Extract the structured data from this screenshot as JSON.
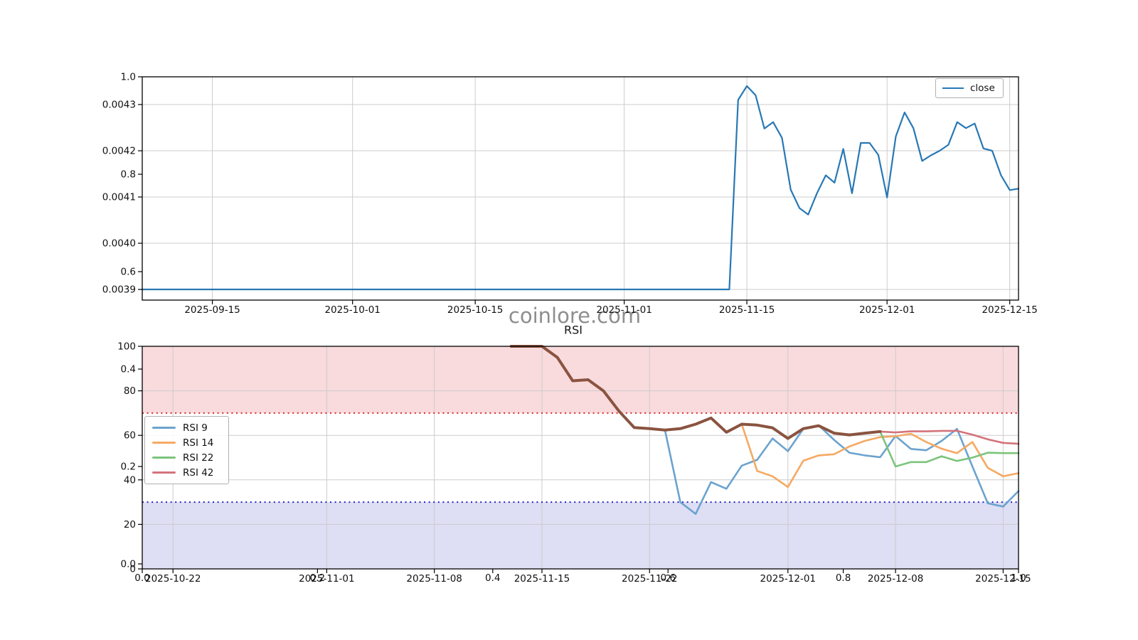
{
  "watermark": {
    "text": "coinlore.com"
  },
  "overlay_axis": {
    "x_ticks": [
      {
        "label": "0.0",
        "value": 0.0
      },
      {
        "label": "0.2",
        "value": 0.2
      },
      {
        "label": "0.4",
        "value": 0.4
      },
      {
        "label": "0.6",
        "value": 0.6
      },
      {
        "label": "0.8",
        "value": 0.8
      },
      {
        "label": "1.0",
        "value": 1.0
      }
    ],
    "y_ticks": [
      {
        "label": "0.0",
        "value": 0.0
      },
      {
        "label": "0.2",
        "value": 0.2
      },
      {
        "label": "0.4",
        "value": 0.4
      },
      {
        "label": "0.6",
        "value": 0.6
      },
      {
        "label": "0.8",
        "value": 0.8
      },
      {
        "label": "1.0",
        "value": 1.0
      }
    ]
  },
  "colors": {
    "grid": "#cccccc",
    "spine": "#000000",
    "tick_text": "#111111",
    "watermark": "#8e8e8e",
    "price_line": "#2878b4",
    "rsi9": "#6ba3cf",
    "rsi14": "#f5a962",
    "rsi22": "#7cc47c",
    "rsi42": "#d4737b",
    "rsi_cluster": "#8a5340",
    "overbought_band": "#f9dadd",
    "oversold_band": "#dedef4",
    "overbought_line": "#d62a2a",
    "oversold_line": "#2222bb"
  },
  "chart_data": [
    {
      "type": "line",
      "name": "price",
      "legend_label": "close",
      "legend_position": "upper right",
      "grid": true,
      "x_domain": [
        "2025-09-07",
        "2025-12-16"
      ],
      "y_domain": [
        0.003877,
        0.00436
      ],
      "x_ticks": [
        "2025-09-15",
        "2025-10-01",
        "2025-10-15",
        "2025-11-01",
        "2025-11-15",
        "2025-12-01",
        "2025-12-15"
      ],
      "y_ticks": [
        {
          "label": "0.0043",
          "value": 0.0043
        },
        {
          "label": "0.0042",
          "value": 0.0042
        },
        {
          "label": "0.0041",
          "value": 0.0041
        },
        {
          "label": "0.0040",
          "value": 0.004
        },
        {
          "label": "0.0039",
          "value": 0.0039
        }
      ],
      "series": [
        {
          "name": "close",
          "color": "#2878b4",
          "width": 2.2,
          "points": [
            [
              "2025-09-07",
              0.0039
            ],
            [
              "2025-11-13",
              0.0039
            ],
            [
              "2025-11-14",
              0.00431
            ],
            [
              "2025-11-15",
              0.00434
            ],
            [
              "2025-11-16",
              0.00432
            ],
            [
              "2025-11-17",
              0.004248
            ],
            [
              "2025-11-18",
              0.004262
            ],
            [
              "2025-11-19",
              0.004228
            ],
            [
              "2025-11-20",
              0.004116
            ],
            [
              "2025-11-21",
              0.004076
            ],
            [
              "2025-11-22",
              0.004062
            ],
            [
              "2025-11-23",
              0.004108
            ],
            [
              "2025-11-24",
              0.004147
            ],
            [
              "2025-11-25",
              0.004131
            ],
            [
              "2025-11-26",
              0.004204
            ],
            [
              "2025-11-27",
              0.004108
            ],
            [
              "2025-11-28",
              0.004217
            ],
            [
              "2025-11-29",
              0.004217
            ],
            [
              "2025-11-30",
              0.004191
            ],
            [
              "2025-12-01",
              0.004099
            ],
            [
              "2025-12-02",
              0.004231
            ],
            [
              "2025-12-03",
              0.004283
            ],
            [
              "2025-12-04",
              0.004249
            ],
            [
              "2025-12-05",
              0.004178
            ],
            [
              "2025-12-06",
              0.00419
            ],
            [
              "2025-12-07",
              0.0042
            ],
            [
              "2025-12-08",
              0.004213
            ],
            [
              "2025-12-09",
              0.004262
            ],
            [
              "2025-12-10",
              0.004249
            ],
            [
              "2025-12-11",
              0.004259
            ],
            [
              "2025-12-12",
              0.004205
            ],
            [
              "2025-12-13",
              0.0042
            ],
            [
              "2025-12-14",
              0.004147
            ],
            [
              "2025-12-15",
              0.004115
            ],
            [
              "2025-12-16",
              0.004118
            ]
          ]
        }
      ]
    },
    {
      "type": "line",
      "name": "rsi",
      "title": "RSI",
      "grid": true,
      "x_domain": [
        "2025-10-20",
        "2025-12-16"
      ],
      "y_domain": [
        0,
        100
      ],
      "x_ticks": [
        "2025-10-22",
        "2025-11-01",
        "2025-11-08",
        "2025-11-15",
        "2025-11-22",
        "2025-12-01",
        "2025-12-08",
        "2025-12-15"
      ],
      "y_ticks": [
        {
          "label": "100",
          "value": 100
        },
        {
          "label": "80",
          "value": 80
        },
        {
          "label": "60",
          "value": 60
        },
        {
          "label": "40",
          "value": 40
        },
        {
          "label": "20",
          "value": 20
        },
        {
          "label": "0",
          "value": 0
        }
      ],
      "bands": [
        {
          "name": "overbought-band",
          "from": 70,
          "to": 100,
          "color": "#f9dadd"
        },
        {
          "name": "oversold-band",
          "from": 0,
          "to": 30,
          "color": "#dedef4"
        }
      ],
      "thresholds": [
        {
          "name": "overbought-threshold",
          "value": 70,
          "color": "#d62a2a"
        },
        {
          "name": "oversold-threshold",
          "value": 30,
          "color": "#2222bb"
        }
      ],
      "dates": [
        "2025-11-13",
        "2025-11-14",
        "2025-11-15",
        "2025-11-16",
        "2025-11-17",
        "2025-11-18",
        "2025-11-19",
        "2025-11-20",
        "2025-11-21",
        "2025-11-22",
        "2025-11-23",
        "2025-11-24",
        "2025-11-25",
        "2025-11-26",
        "2025-11-27",
        "2025-11-28",
        "2025-11-29",
        "2025-11-30",
        "2025-12-01",
        "2025-12-02",
        "2025-12-03",
        "2025-12-04",
        "2025-12-05",
        "2025-12-06",
        "2025-12-07",
        "2025-12-08",
        "2025-12-09",
        "2025-12-10",
        "2025-12-11",
        "2025-12-12",
        "2025-12-13",
        "2025-12-14",
        "2025-12-15",
        "2025-12-16"
      ],
      "series": [
        {
          "name": "RSI 9",
          "color": "#6ba3cf",
          "width": 2.6,
          "values": [
            100,
            100,
            100,
            95,
            84.5,
            85,
            80,
            71,
            63.5,
            63,
            62.4,
            30,
            24.7,
            39,
            36,
            46.4,
            49,
            58.6,
            52.9,
            62.9,
            64.5,
            58,
            52.2,
            51,
            50.2,
            59.7,
            53.9,
            53.3,
            57.5,
            62.9,
            46,
            29.5,
            28,
            35
          ]
        },
        {
          "name": "RSI 14",
          "color": "#f5a962",
          "width": 2.6,
          "values": [
            100,
            100,
            100,
            95,
            84.5,
            85,
            80,
            71,
            63.5,
            63,
            62.4,
            63,
            65,
            67.8,
            61.4,
            65,
            44,
            41.6,
            36.8,
            48.6,
            51,
            51.5,
            55,
            57.5,
            59.2,
            59.6,
            60.7,
            57,
            54,
            52,
            57,
            45.4,
            41.6,
            43
          ]
        },
        {
          "name": "RSI 22",
          "color": "#7cc47c",
          "width": 2.6,
          "values": [
            100,
            100,
            100,
            95,
            84.5,
            85,
            80,
            71,
            63.5,
            63,
            62.4,
            63,
            65,
            67.8,
            61.4,
            65,
            64.6,
            63.4,
            58.6,
            63,
            64.3,
            61,
            60.2,
            61,
            61.7,
            46,
            48,
            48,
            50.6,
            48.5,
            50,
            52.2,
            52,
            52
          ]
        },
        {
          "name": "RSI 42",
          "color": "#d4737b",
          "width": 2.6,
          "values": [
            100,
            100,
            100,
            95,
            84.5,
            85,
            80,
            71,
            63.5,
            63,
            62.4,
            63,
            65,
            67.8,
            61.4,
            65,
            64.6,
            63.4,
            58.6,
            63,
            64.3,
            61,
            60.2,
            61,
            61.7,
            61.3,
            61.8,
            61.8,
            62,
            62,
            60.3,
            58.2,
            56.6,
            56.2
          ]
        }
      ],
      "overlap": {
        "name": "rsi-cluster-overlap",
        "color": "#8a5340",
        "width": 4,
        "source": "RSI 42",
        "until": "2025-12-07"
      }
    }
  ]
}
